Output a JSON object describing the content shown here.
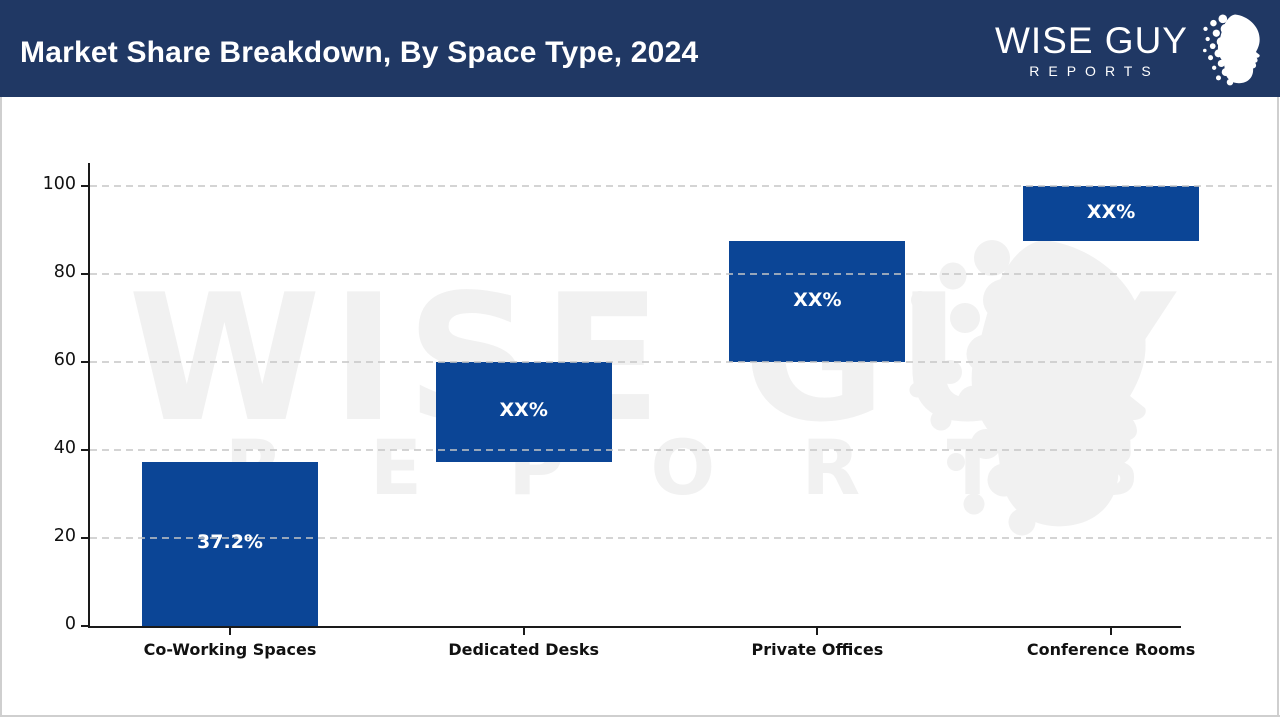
{
  "header": {
    "title": "Market Share Breakdown, By Space Type, 2024",
    "bg_color": "#203864",
    "logo": {
      "line1": "WISE GUY",
      "line2": "REPORTS"
    }
  },
  "watermark": {
    "line1": "WISE GUY",
    "line2": "R E P O R T S"
  },
  "chart_data": {
    "type": "bar",
    "subtype": "floating-waterfall",
    "title": "Market Share Breakdown, By Space Type, 2024",
    "categories": [
      "Co-Working Spaces",
      "Dedicated Desks",
      "Private Offices",
      "Conference Rooms"
    ],
    "bars": [
      {
        "category": "Co-Working Spaces",
        "start": 0,
        "end": 37.2,
        "label": "37.2%"
      },
      {
        "category": "Dedicated Desks",
        "start": 37.2,
        "end": 60,
        "label": "XX%"
      },
      {
        "category": "Private Offices",
        "start": 60,
        "end": 87.5,
        "label": "XX%"
      },
      {
        "category": "Conference Rooms",
        "start": 87.5,
        "end": 100,
        "label": "XX%"
      }
    ],
    "yticks": [
      0,
      20,
      40,
      60,
      80,
      100
    ],
    "ylim": [
      0,
      100
    ],
    "xlabel": "",
    "ylabel": "",
    "legend": "none",
    "grid": "horizontal-dashed",
    "bar_color": "#0b4596",
    "bar_label_color": "#ffffff",
    "axis_color": "#1a1a1a",
    "gridline_color": "#d9d9d9"
  }
}
